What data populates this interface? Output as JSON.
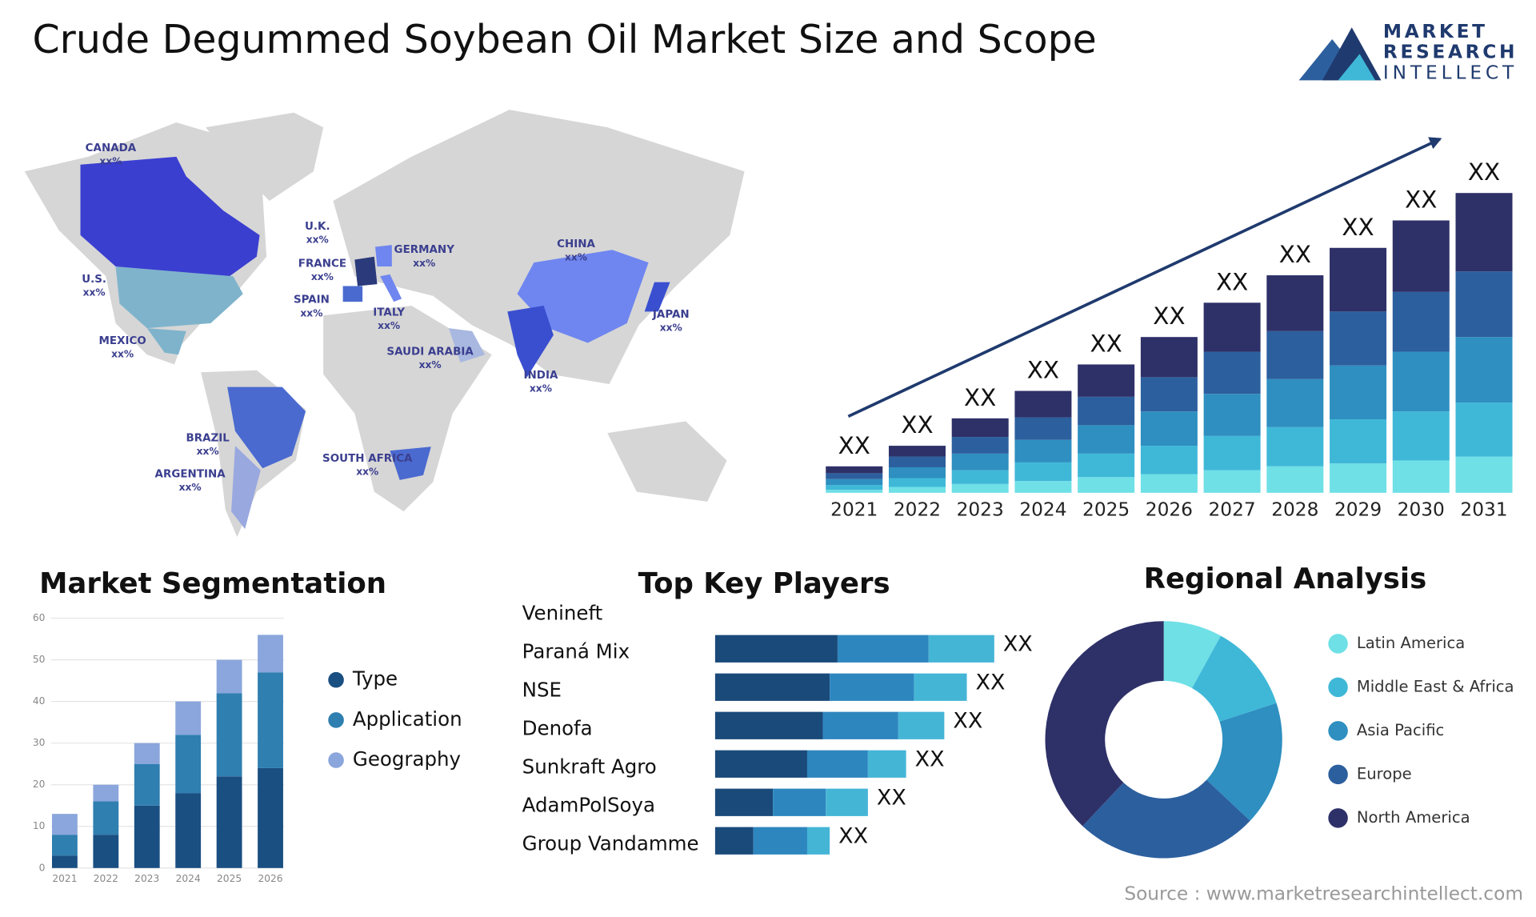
{
  "title": "Crude Degummed Soybean Oil Market Size and Scope",
  "logo": {
    "line1": "MARKET",
    "line2": "RESEARCH",
    "line3": "INTELLECT"
  },
  "map": {
    "labels": [
      {
        "name": "CANADA",
        "value": "xx%"
      },
      {
        "name": "U.S.",
        "value": "xx%"
      },
      {
        "name": "MEXICO",
        "value": "xx%"
      },
      {
        "name": "BRAZIL",
        "value": "xx%"
      },
      {
        "name": "ARGENTINA",
        "value": "xx%"
      },
      {
        "name": "U.K.",
        "value": "xx%"
      },
      {
        "name": "FRANCE",
        "value": "xx%"
      },
      {
        "name": "SPAIN",
        "value": "xx%"
      },
      {
        "name": "GERMANY",
        "value": "xx%"
      },
      {
        "name": "ITALY",
        "value": "xx%"
      },
      {
        "name": "SAUDI ARABIA",
        "value": "xx%"
      },
      {
        "name": "SOUTH AFRICA",
        "value": "xx%"
      },
      {
        "name": "CHINA",
        "value": "xx%"
      },
      {
        "name": "INDIA",
        "value": "xx%"
      },
      {
        "name": "JAPAN",
        "value": "xx%"
      }
    ]
  },
  "chart_data": [
    {
      "type": "bar",
      "categories": [
        "2021",
        "2022",
        "2023",
        "2024",
        "2025",
        "2026",
        "2027",
        "2028",
        "2029",
        "2030",
        "2031"
      ],
      "series": [
        {
          "color": "#6fe0e6",
          "values": [
            3,
            6,
            9,
            12,
            16,
            19,
            23,
            27,
            30,
            33,
            37
          ]
        },
        {
          "color": "#3fb8d8",
          "values": [
            5,
            9,
            14,
            19,
            24,
            29,
            35,
            40,
            45,
            50,
            55
          ]
        },
        {
          "color": "#2e8fc0",
          "values": [
            6,
            11,
            17,
            23,
            29,
            35,
            43,
            49,
            55,
            61,
            67
          ]
        },
        {
          "color": "#2c5f9e",
          "values": [
            6,
            11,
            17,
            23,
            29,
            35,
            43,
            49,
            55,
            61,
            67
          ]
        },
        {
          "color": "#2e3068",
          "values": [
            7,
            11,
            19,
            27,
            33,
            41,
            50,
            57,
            65,
            73,
            80
          ]
        }
      ],
      "total_labels": [
        "XX",
        "XX",
        "XX",
        "XX",
        "XX",
        "XX",
        "XX",
        "XX",
        "XX",
        "XX",
        "XX"
      ]
    },
    {
      "type": "bar",
      "title": "Market Segmentation",
      "categories": [
        "2021",
        "2022",
        "2023",
        "2024",
        "2025",
        "2026"
      ],
      "series": [
        {
          "name": "Type",
          "color": "#1a4f82",
          "values": [
            3,
            8,
            15,
            18,
            22,
            24
          ]
        },
        {
          "name": "Application",
          "color": "#2f7fb0",
          "values": [
            5,
            8,
            10,
            14,
            20,
            23
          ]
        },
        {
          "name": "Geography",
          "color": "#8aa6dc",
          "values": [
            5,
            4,
            5,
            8,
            8,
            9
          ]
        }
      ],
      "ylim": [
        0,
        60
      ],
      "yticks": [
        0,
        10,
        20,
        30,
        40,
        50,
        60
      ],
      "grid": true,
      "legend": "right"
    },
    {
      "type": "bar",
      "orientation": "horizontal",
      "title": "Top Key Players",
      "categories": [
        "Venineft",
        "Paraná Mix",
        "NSE",
        "Denofa",
        "Sunkraft Agro",
        "AdamPolSoya",
        "Group Vandamme"
      ],
      "series": [
        {
          "color": "#1a4a7a",
          "values": [
            null,
            125,
            117,
            110,
            94,
            59,
            39
          ]
        },
        {
          "color": "#2e86bf",
          "values": [
            null,
            93,
            86,
            77,
            62,
            54,
            55
          ]
        },
        {
          "color": "#45b5d6",
          "values": [
            null,
            67,
            54,
            47,
            39,
            43,
            23
          ]
        }
      ],
      "value_labels": [
        null,
        "XX",
        "XX",
        "XX",
        "XX",
        "XX",
        "XX"
      ]
    },
    {
      "type": "donut",
      "title": "Regional Analysis",
      "categories": [
        "Latin America",
        "Middle East & Africa",
        "Asia Pacific",
        "Europe",
        "North America"
      ],
      "values": [
        8,
        12,
        17,
        25,
        38
      ],
      "colors": [
        "#6fe0e6",
        "#3fb8d8",
        "#2e8fc0",
        "#2c5f9e",
        "#2e3068"
      ]
    }
  ],
  "source": "Source : www.marketresearchintellect.com"
}
